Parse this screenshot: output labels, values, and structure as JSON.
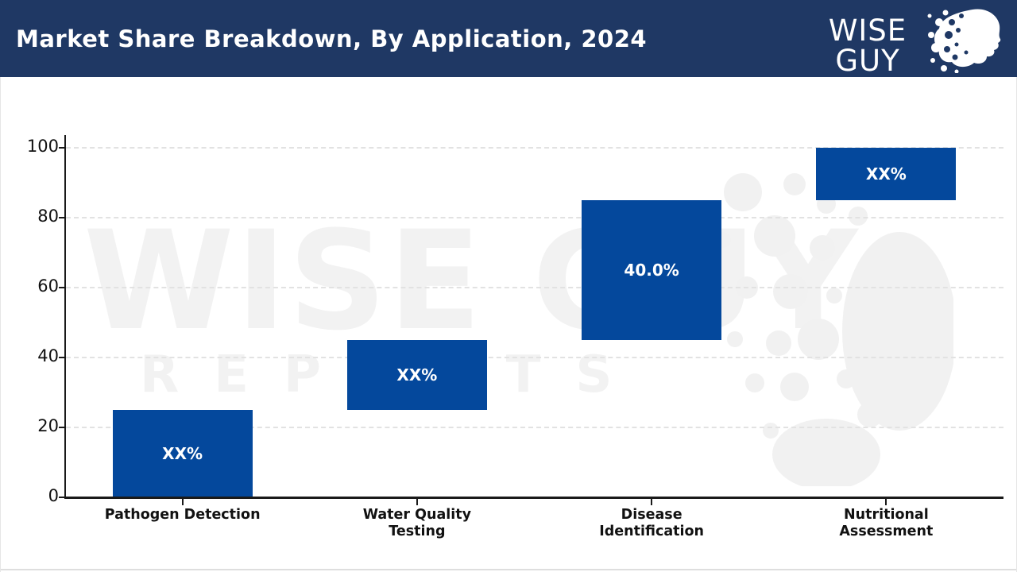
{
  "header": {
    "title": "Market Share Breakdown, By Application, 2024",
    "logo": {
      "line1": "WISE GUY",
      "line2": "REPORTS"
    },
    "bg_color": "#1f3864"
  },
  "watermark": {
    "line1": "WISE GUY",
    "line2": "REPORTS"
  },
  "chart_data": {
    "type": "bar",
    "subtype": "waterfall",
    "title": "Market Share Breakdown, By Application, 2024",
    "categories": [
      "Pathogen Detection",
      "Water Quality\nTesting",
      "Disease\nIdentification",
      "Nutritional\nAssessment"
    ],
    "bars": [
      {
        "category": "Pathogen Detection",
        "start": 0,
        "end": 25,
        "label": "XX%"
      },
      {
        "category": "Water Quality\nTesting",
        "start": 25,
        "end": 45,
        "label": "XX%"
      },
      {
        "category": "Disease\nIdentification",
        "start": 45,
        "end": 85,
        "label": "40.0%"
      },
      {
        "category": "Nutritional\nAssessment",
        "start": 85,
        "end": 100,
        "label": "XX%"
      }
    ],
    "y_ticks": [
      0,
      20,
      40,
      60,
      80,
      100
    ],
    "ylim": [
      0,
      100
    ],
    "xlabel": "",
    "ylabel": "",
    "grid": true,
    "legend": false,
    "bar_color": "#04489c",
    "axis_color": "#1a1a1a",
    "grid_color": "#e2e2e2"
  }
}
